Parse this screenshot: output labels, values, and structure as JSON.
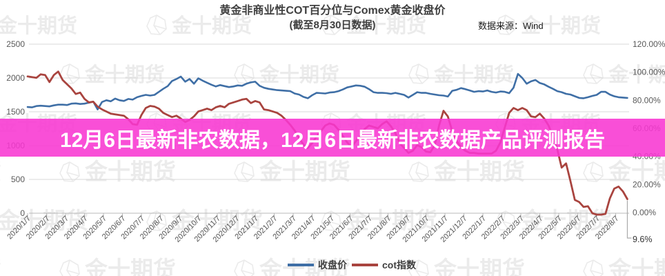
{
  "title": {
    "line1": "黄金非商业性COT百分位与Comex黄金收盘价",
    "line2": "(截至8月30日数据)"
  },
  "source": "数据来源：Wind",
  "watermark": {
    "text": "金十期货"
  },
  "banner": {
    "text": "12月6日最新非农数据，12月6日最新非农数据产品评测报告",
    "bg_color": "#f837d2",
    "text_color": "#ffffff"
  },
  "legend": [
    {
      "label": "收盘价",
      "color": "#3f6fa6"
    },
    {
      "label": "cot指数",
      "color": "#a9443f"
    }
  ],
  "chart_data": {
    "type": "line",
    "title": "黄金非商业性COT百分位与Comex黄金收盘价(截至8月30日数据)",
    "x_tick_labels": [
      "2020/1/7",
      "2020/2/7",
      "2020/3/7",
      "2020/4/7",
      "2020/5/7",
      "2020/6/7",
      "2020/7/7",
      "2020/8/7",
      "2020/9/7",
      "2020/10/7",
      "2020/11/7",
      "2020/12/7",
      "2021/1/7",
      "2021/2/7",
      "2021/3/7",
      "2021/4/7",
      "2021/5/7",
      "2021/6/7",
      "2021/7/7",
      "2021/8/7",
      "2021/9/7",
      "2021/10/7",
      "2021/11/7",
      "2021/12/7",
      "2022/1/7",
      "2022/2/7",
      "2022/3/7",
      "2022/4/7",
      "2022/5/7",
      "2022/6/7",
      "2022/7/7",
      "2022/8/7"
    ],
    "left_axis": {
      "min": 0,
      "max": 2500,
      "ticks": [
        0,
        500,
        1000,
        1500,
        2000,
        2500
      ]
    },
    "right_axis": {
      "min": 0,
      "max": 120,
      "ticks_pct": [
        0,
        20,
        40,
        60,
        80,
        100,
        120
      ]
    },
    "grid": true,
    "end_label": "9.6%",
    "legend_position": "bottom",
    "points_per_month": 4.3333,
    "series": [
      {
        "name": "收盘价",
        "axis": "left",
        "color": "#3f6fa6",
        "weekly_values": [
          1570,
          1565,
          1585,
          1590,
          1585,
          1580,
          1595,
          1605,
          1605,
          1600,
          1620,
          1625,
          1615,
          1620,
          1635,
          1650,
          1535,
          1645,
          1670,
          1655,
          1695,
          1670,
          1660,
          1690,
          1680,
          1715,
          1735,
          1750,
          1740,
          1750,
          1795,
          1840,
          1880,
          1955,
          1985,
          2020,
          1945,
          1985,
          1915,
          1995,
          1960,
          1930,
          1900,
          1875,
          1895,
          1880,
          1865,
          1875,
          1890,
          1885,
          1915,
          1935,
          1945,
          1885,
          1855,
          1840,
          1830,
          1820,
          1815,
          1810,
          1805,
          1770,
          1755,
          1720,
          1700,
          1745,
          1780,
          1775,
          1770,
          1785,
          1790,
          1805,
          1830,
          1860,
          1875,
          1890,
          1885,
          1870,
          1835,
          1790,
          1780,
          1780,
          1775,
          1765,
          1780,
          1765,
          1750,
          1710,
          1750,
          1790,
          1780,
          1780,
          1765,
          1755,
          1745,
          1740,
          1725,
          1810,
          1825,
          1850,
          1835,
          1815,
          1795,
          1805,
          1800,
          1815,
          1795,
          1785,
          1800,
          1795,
          1775,
          1855,
          2060,
          2000,
          1915,
          1950,
          1970,
          1925,
          1905,
          1870,
          1840,
          1805,
          1790,
          1765,
          1755,
          1730,
          1705,
          1700,
          1715,
          1735,
          1750,
          1795,
          1795,
          1755,
          1730,
          1715,
          1710,
          1705
        ]
      },
      {
        "name": "cot指数",
        "axis": "right",
        "color": "#a9443f",
        "weekly_values": [
          97,
          96.5,
          96,
          98.5,
          98,
          93,
          98,
          100.5,
          94.5,
          91.5,
          88.5,
          84.5,
          85.5,
          81,
          78.5,
          79,
          75.5,
          73.5,
          72,
          70.5,
          70,
          69.5,
          69,
          66.5,
          63,
          62.5,
          69.5,
          74.5,
          76,
          75.5,
          74,
          71,
          69.5,
          68,
          69,
          67,
          64.5,
          66,
          68.5,
          72,
          73,
          74,
          73,
          75,
          76,
          75,
          77.5,
          78.5,
          79.5,
          80.5,
          81,
          78,
          79.5,
          78.5,
          73.5,
          73,
          72,
          71,
          69,
          66,
          62.5,
          58.5,
          53,
          48.5,
          46,
          49.5,
          54,
          58,
          62,
          63.5,
          62.5,
          59,
          54.5,
          50,
          46.5,
          51,
          54.5,
          59.5,
          62,
          61,
          60,
          63,
          65,
          61.5,
          56.5,
          49.5,
          46,
          42.5,
          44,
          48,
          46.5,
          43.5,
          43,
          48,
          62,
          72.5,
          68.5,
          58,
          51,
          46.5,
          44,
          42.5,
          42.5,
          42,
          42,
          42,
          42,
          44,
          50,
          60.5,
          71,
          74.5,
          73,
          74.5,
          73,
          68.5,
          68,
          70.5,
          67,
          62,
          54,
          45,
          32,
          35,
          22.5,
          9,
          7.5,
          4,
          4.5,
          -0.5,
          -1.5,
          -1.5,
          -1,
          10,
          17,
          18.5,
          15,
          9.6
        ]
      }
    ]
  }
}
